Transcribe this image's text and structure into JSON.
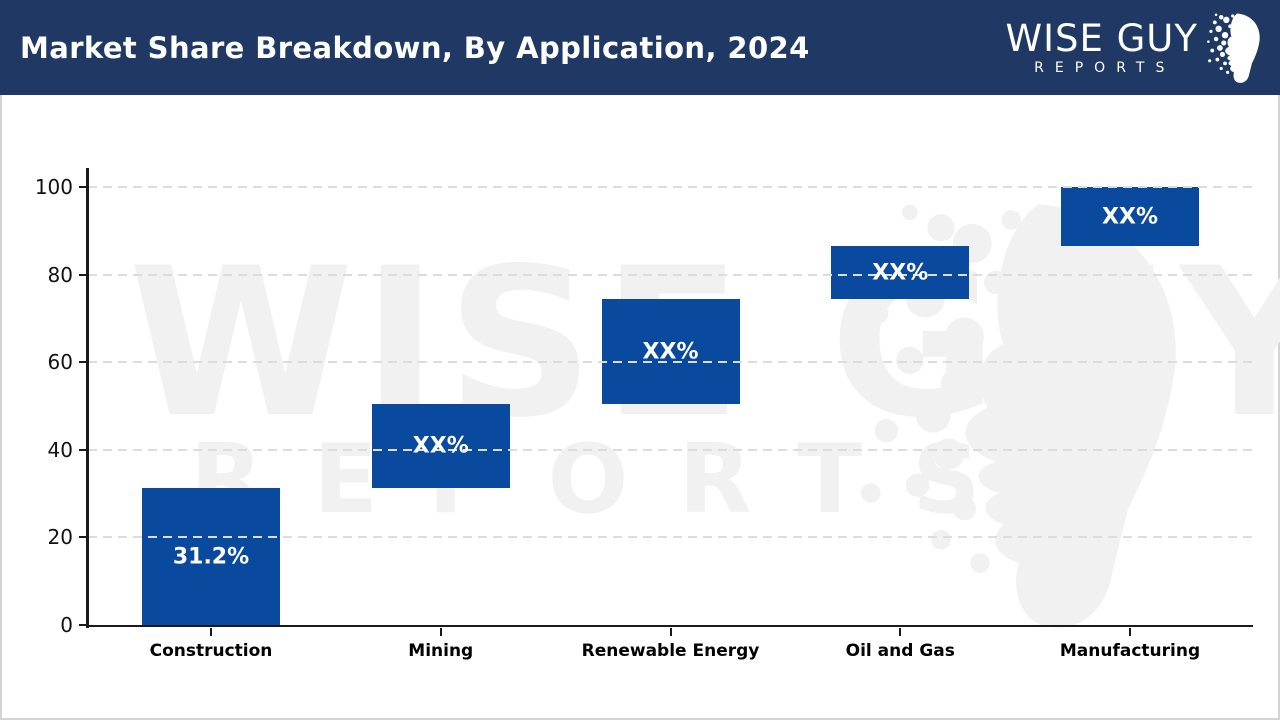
{
  "header": {
    "title": "Market Share Breakdown, By Application, 2024"
  },
  "logo": {
    "name": "WISE GUY",
    "subtitle": "REPORTS"
  },
  "watermark": {
    "line1": "WISE GUY",
    "line2": "REPORTS"
  },
  "colors": {
    "header_bg": "#1f3864",
    "bar": "#0a4a9e",
    "bar_label": "#ffffff",
    "axis": "#1a1a1a",
    "gridline": "#dcdcdc",
    "watermark": "#f1f1f1"
  },
  "chart_data": {
    "type": "bar",
    "subtype": "waterfall",
    "title": "Market Share Breakdown, By Application, 2024",
    "categories": [
      "Construction",
      "Mining",
      "Renewable Energy",
      "Oil and Gas",
      "Manufacturing"
    ],
    "series": [
      {
        "name": "Market Share",
        "segments": [
          {
            "category": "Construction",
            "start": 0,
            "end": 31.2,
            "label": "31.2%"
          },
          {
            "category": "Mining",
            "start": 31.2,
            "end": 50.4,
            "label": "XX%"
          },
          {
            "category": "Renewable Energy",
            "start": 50.4,
            "end": 74.4,
            "label": "XX%"
          },
          {
            "category": "Oil and Gas",
            "start": 74.4,
            "end": 86.5,
            "label": "XX%"
          },
          {
            "category": "Manufacturing",
            "start": 86.5,
            "end": 100,
            "label": "XX%"
          }
        ]
      }
    ],
    "xlabel": "",
    "ylabel": "",
    "ylim": [
      0,
      100
    ],
    "yticks": [
      0,
      20,
      40,
      60,
      80,
      100
    ],
    "grid": "horizontal-dashed-over-bars",
    "legend": "none"
  }
}
